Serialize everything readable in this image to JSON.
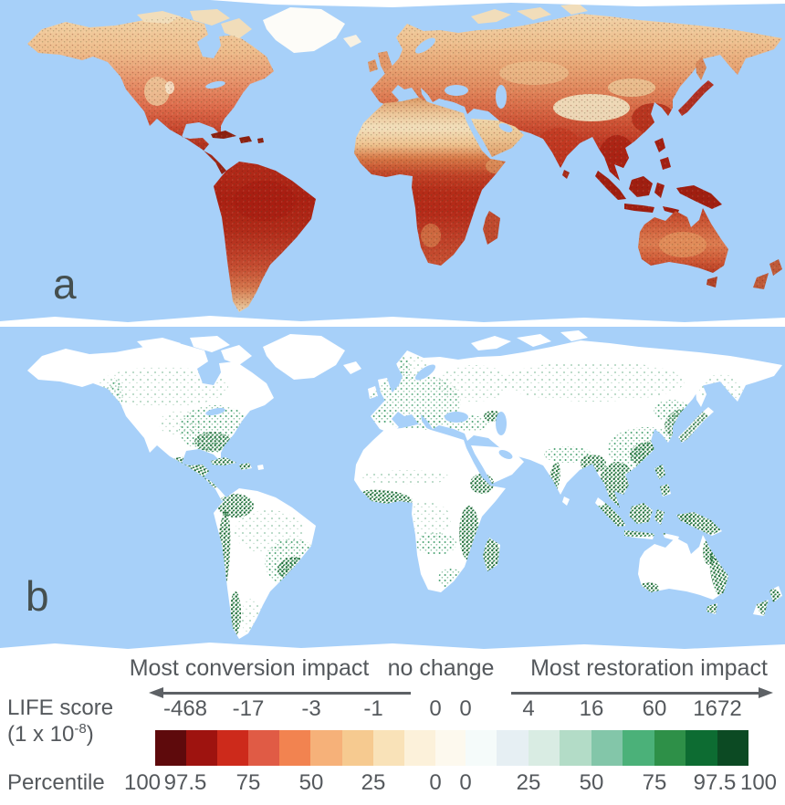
{
  "figure": {
    "panel_a_label": "a",
    "panel_b_label": "b"
  },
  "colors": {
    "ocean": "#a7d0f9",
    "land_no_data": "#ffffff",
    "text": "#54585c",
    "arrow": "#5d6165",
    "panel_label": "#454f4f"
  },
  "legend": {
    "direction_labels": {
      "left": "Most conversion impact",
      "center": "no change",
      "right": "Most restoration impact"
    },
    "life_score_label": "LIFE score",
    "life_score_unit_prefix": "(1 x 10",
    "life_score_unit_exp": "-8",
    "life_score_unit_suffix": ")",
    "percentile_label": "Percentile",
    "life_scores_conversion": [
      "-468",
      "-17",
      "-3",
      "-1",
      "0"
    ],
    "life_scores_restoration": [
      "0",
      "4",
      "16",
      "60",
      "1672"
    ],
    "percentiles_conversion": [
      "100",
      "97.5",
      "75",
      "50",
      "25",
      "0"
    ],
    "percentiles_restoration": [
      "0",
      "25",
      "50",
      "75",
      "97.5",
      "100"
    ],
    "red_segments": [
      "#5e0a0c",
      "#9e130f",
      "#cd2a1b",
      "#e05b45",
      "#f28350",
      "#f6b179",
      "#f6ca90",
      "#f9e2b8",
      "#fcf1da",
      "#fdf9ee"
    ],
    "green_segments": [
      "#f5fbfa",
      "#e6eff3",
      "#d9ece3",
      "#b3dcc7",
      "#83c6a9",
      "#4bb179",
      "#2e9048",
      "#0d6c32",
      "#0c4a23"
    ]
  }
}
